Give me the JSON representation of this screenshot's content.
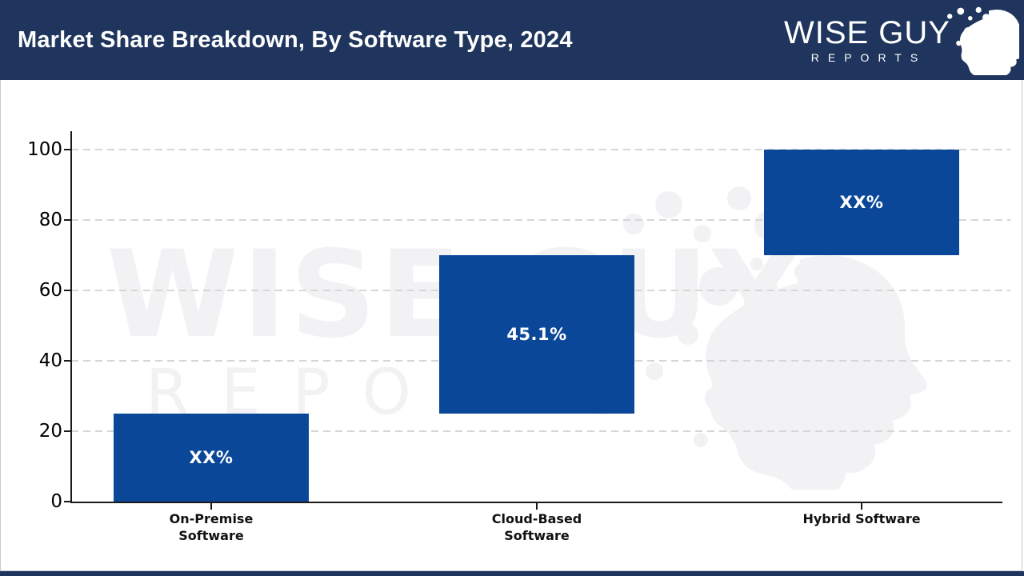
{
  "header": {
    "title": "Market Share Breakdown, By Software Type, 2024",
    "logo": {
      "line1": "WISE GUY",
      "line2": "REPORTS"
    }
  },
  "watermark": {
    "line1": "WISE GUY",
    "line2": "REPORTS"
  },
  "chart_data": {
    "type": "bar",
    "variant": "floating-segment breakdown (waterfall-style, each bar stacks on the previous)",
    "title": "Market Share Breakdown, By Software Type, 2024",
    "categories": [
      "On-Premise\nSoftware",
      "Cloud-Based\nSoftware",
      "Hybrid Software"
    ],
    "series": [
      {
        "name": "Market share (%)",
        "segments": [
          {
            "category": "On-Premise Software",
            "start": 0,
            "end": 25,
            "value_label": "XX%"
          },
          {
            "category": "Cloud-Based Software",
            "start": 25,
            "end": 70.1,
            "value_label": "45.1%"
          },
          {
            "category": "Hybrid Software",
            "start": 70.1,
            "end": 100,
            "value_label": "XX%"
          }
        ]
      }
    ],
    "yticks": [
      0,
      20,
      40,
      60,
      80,
      100
    ],
    "ylim": [
      0,
      105
    ],
    "xlabel": "",
    "ylabel": "",
    "grid": "horizontal dashed gridlines at ticks 20-100",
    "legend": "none",
    "colors": {
      "bar": "#0b4798",
      "bar_label": "#ffffff",
      "header_bg": "#1f355e",
      "grid": "#d6d6d6",
      "axis": "#1a1a1a",
      "watermark": "#f2f2f4"
    }
  }
}
